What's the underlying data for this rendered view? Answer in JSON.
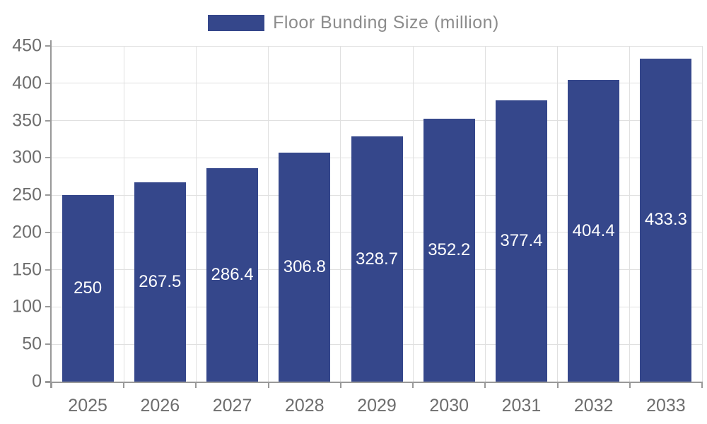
{
  "legend": {
    "label": "Floor Bunding Size (million)"
  },
  "chart_data": {
    "type": "bar",
    "title": "",
    "xlabel": "",
    "ylabel": "",
    "categories": [
      "2025",
      "2026",
      "2027",
      "2028",
      "2029",
      "2030",
      "2031",
      "2032",
      "2033"
    ],
    "series": [
      {
        "name": "Floor Bunding Size (million)",
        "values": [
          250,
          267.5,
          286.4,
          306.8,
          328.7,
          352.2,
          377.4,
          404.4,
          433.3
        ],
        "labels": [
          "250",
          "267.5",
          "286.4",
          "306.8",
          "328.7",
          "352.2",
          "377.4",
          "404.4",
          "433.3"
        ]
      }
    ],
    "ylim": [
      0,
      450
    ],
    "yticks": [
      0,
      50,
      100,
      150,
      200,
      250,
      300,
      350,
      400,
      450
    ],
    "grid": true,
    "legend_position": "top-center",
    "colors": {
      "bar": "#35478b",
      "bar_value_label": "#ffffff",
      "grid_line": "#e0e0e0",
      "axis_line": "#999999",
      "tick_text": "#6e6e6e",
      "legend_text": "#8c8c8c"
    }
  }
}
